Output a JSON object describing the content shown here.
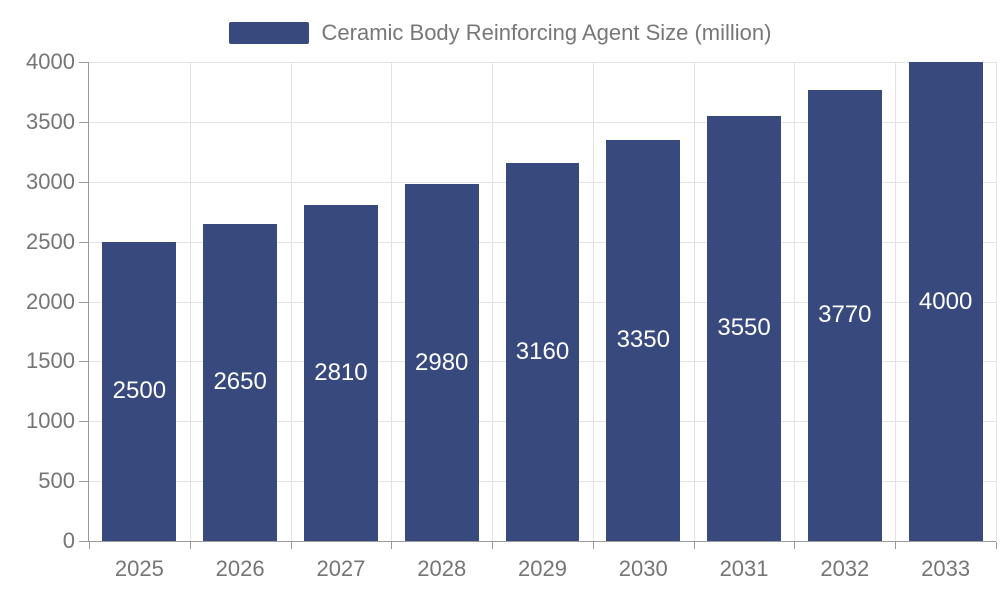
{
  "legend": {
    "label": "Ceramic Body Reinforcing Agent Size (million)"
  },
  "colors": {
    "background": "#ffffff",
    "bar": "#38497E",
    "legend_text": "#777777",
    "axis_line": "#999999",
    "gridline": "#e3e3e3",
    "tick_label": "#757575",
    "bar_label": "#ffffff"
  },
  "chart_data": {
    "type": "bar",
    "title": "Ceramic Body Reinforcing Agent Size (million)",
    "categories": [
      "2025",
      "2026",
      "2027",
      "2028",
      "2029",
      "2030",
      "2031",
      "2032",
      "2033"
    ],
    "series": [
      {
        "name": "Ceramic Body Reinforcing Agent Size (million)",
        "values": [
          2500,
          2650,
          2810,
          2980,
          3160,
          3350,
          3550,
          3770,
          4000
        ],
        "color": "#38497E"
      }
    ],
    "xlabel": "",
    "ylabel": "",
    "ylim": [
      0,
      4000
    ],
    "y_ticks": [
      0,
      500,
      1000,
      1500,
      2000,
      2500,
      3000,
      3500,
      4000
    ],
    "grid": true,
    "legend_position": "top",
    "value_labels": "inside-center"
  }
}
